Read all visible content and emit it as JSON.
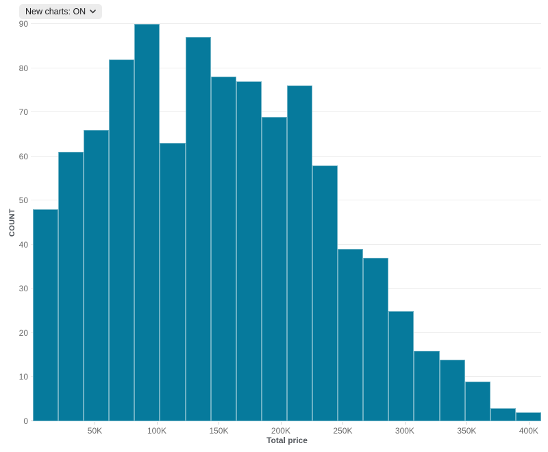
{
  "controls": {
    "new_charts_label": "New charts: ON"
  },
  "chart_data": {
    "type": "bar",
    "subtype": "histogram",
    "title": "",
    "xlabel": "Total price",
    "ylabel": "COUNT",
    "values": [
      48,
      61,
      66,
      82,
      90,
      63,
      87,
      78,
      77,
      69,
      76,
      58,
      39,
      37,
      25,
      16,
      14,
      9,
      3,
      2
    ],
    "n_bins": 20,
    "bin_start": 0,
    "bin_width_approx": 20500,
    "x_ticks": [
      {
        "label": "50K",
        "value": 50000
      },
      {
        "label": "100K",
        "value": 100000
      },
      {
        "label": "150K",
        "value": 150000
      },
      {
        "label": "200K",
        "value": 200000
      },
      {
        "label": "250K",
        "value": 250000
      },
      {
        "label": "300K",
        "value": 300000
      },
      {
        "label": "350K",
        "value": 350000
      },
      {
        "label": "400K",
        "value": 400000
      }
    ],
    "y_ticks": [
      0,
      10,
      20,
      30,
      40,
      50,
      60,
      70,
      80,
      90
    ],
    "xlim": [
      0,
      410000
    ],
    "ylim": [
      0,
      90
    ],
    "grid": true,
    "legend": "none",
    "colors": {
      "bar": "#067a9c",
      "bar_stroke": "rgba(255,255,255,0.42)",
      "gridline": "#ededed",
      "axis_line": "#c9c9c9",
      "tick_text": "#6a6a6a",
      "axis_title_text": "#53575c"
    }
  }
}
